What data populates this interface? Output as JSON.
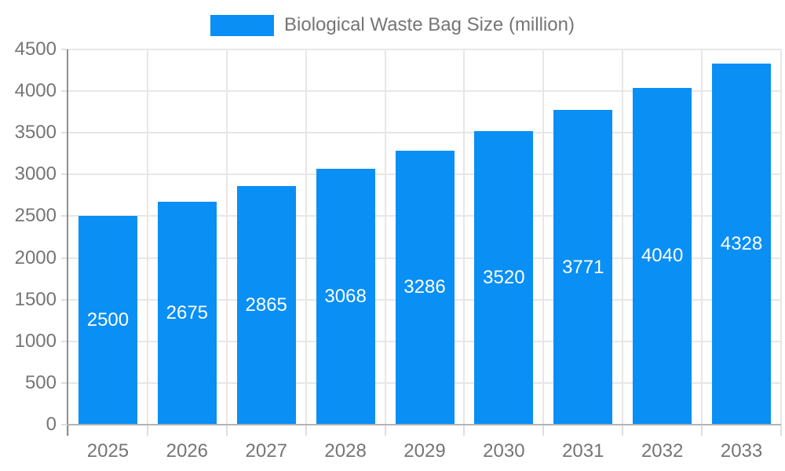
{
  "chart_data": {
    "type": "bar",
    "title": "Biological Waste Bag Size (million)",
    "categories": [
      "2025",
      "2026",
      "2027",
      "2028",
      "2029",
      "2030",
      "2031",
      "2032",
      "2033"
    ],
    "values": [
      2500,
      2675,
      2865,
      3068,
      3286,
      3520,
      3771,
      4040,
      4328
    ],
    "xlabel": "",
    "ylabel": "",
    "ylim": [
      0,
      4500
    ],
    "yticks": [
      0,
      500,
      1000,
      1500,
      2000,
      2500,
      3000,
      3500,
      4000,
      4500
    ],
    "grid": true,
    "legend_position": "top",
    "bar_value_labels": "inside-center"
  },
  "colors": {
    "bar": "#0A8FF5",
    "bar_label": "#ffffff",
    "axis_label": "#757575",
    "gridline": "#e7e7e7",
    "tick": "#dedede",
    "x_axis_line": "#b3b3b3",
    "y_axis_line": "#8f8f8f"
  }
}
